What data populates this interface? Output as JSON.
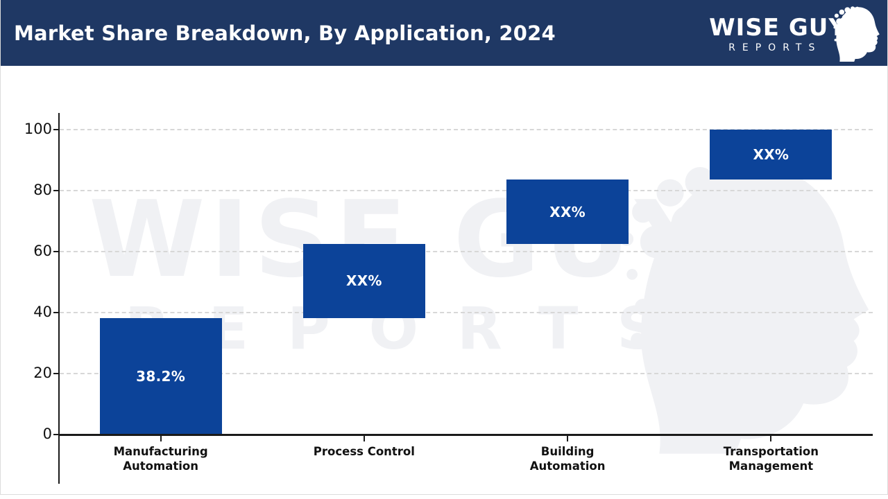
{
  "header": {
    "title": "Market Share Breakdown, By Application, 2024",
    "logo": {
      "main": "WISE GUY",
      "sub": "REPORTS",
      "head_icon": "wiseguy-dotted-head-icon"
    }
  },
  "watermark": {
    "main": "WISE GUY",
    "sub": "REPORTS",
    "head_icon": "wiseguy-dotted-head-icon"
  },
  "chart_data": {
    "type": "bar",
    "subtype": "waterfall-floating-bars",
    "title": "Market Share Breakdown, By Application, 2024",
    "categories": [
      [
        "Manufacturing",
        "Automation"
      ],
      [
        "Process Control"
      ],
      [
        "Building",
        "Automation"
      ],
      [
        "Transportation",
        "Management"
      ]
    ],
    "bars": [
      {
        "category": "Manufacturing Automation",
        "start": 0,
        "end": 38.2,
        "label": "38.2%"
      },
      {
        "category": "Process Control",
        "start": 38.2,
        "end": 62.5,
        "label": "XX%"
      },
      {
        "category": "Building Automation",
        "start": 62.5,
        "end": 83.6,
        "label": "XX%"
      },
      {
        "category": "Transportation Management",
        "start": 83.6,
        "end": 100,
        "label": "XX%"
      }
    ],
    "ylabel": "",
    "xlabel": "",
    "ylim": [
      0,
      100
    ],
    "yticks": [
      0,
      20,
      40,
      60,
      80,
      100
    ],
    "grid": {
      "axis": "y",
      "style": "dashed",
      "on": true
    },
    "legend": null,
    "colors": {
      "bar": "#0c4399",
      "bar_label": "#ffffff",
      "header_bg": "#1f3864",
      "axis": "#1a1a1a",
      "gridline": "#d7d7d7",
      "watermark": "#f0f1f4",
      "background": "#ffffff"
    }
  }
}
